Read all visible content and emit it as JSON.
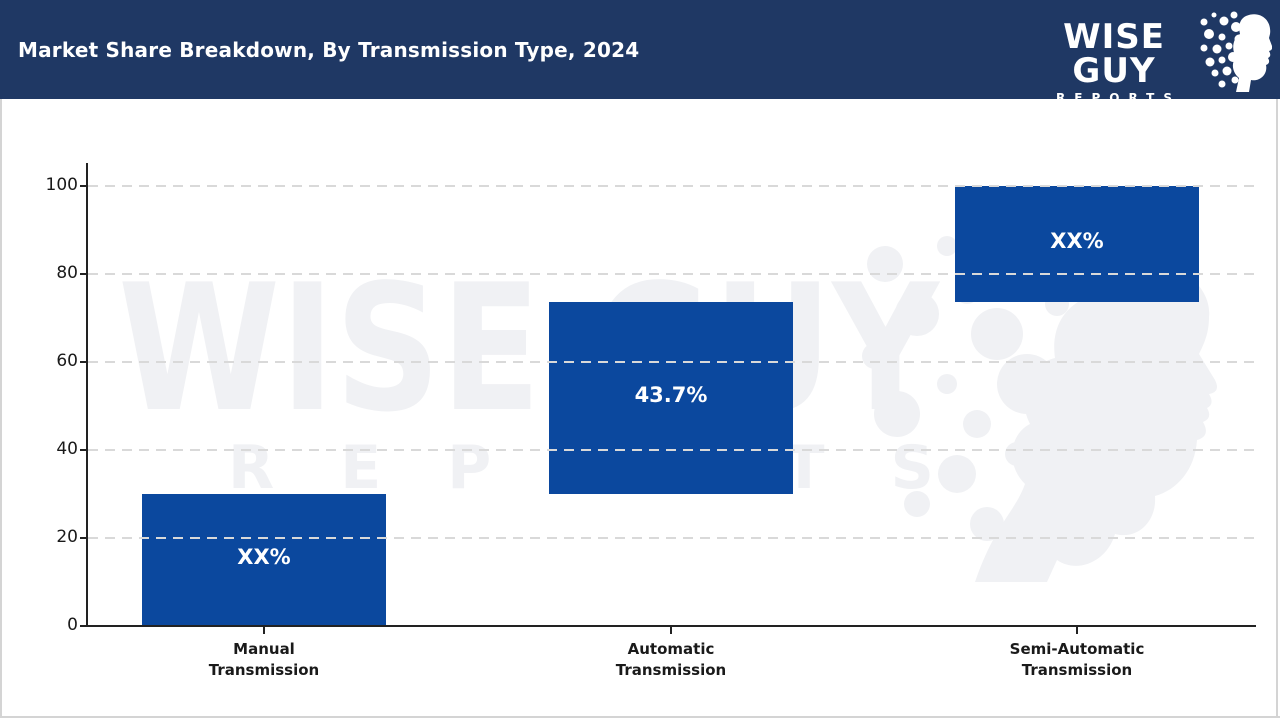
{
  "header": {
    "title": "Market Share Breakdown, By Transmission Type, 2024",
    "logo": {
      "name_top": "WISE GUY",
      "name_bottom": "REPORTS"
    }
  },
  "watermark": {
    "line1": "WISE GUY",
    "line2": "REPORTS"
  },
  "colors": {
    "header_bg": "#1f3864",
    "bar": "#0b489e",
    "grid": "#d9d9d9",
    "axis": "#222222",
    "tick_text": "#1a1a1a",
    "bar_label_text": "#ffffff",
    "watermark": "#f0f1f4",
    "frame": "#d4d4d4"
  },
  "chart_data": {
    "type": "bar",
    "subtype": "floating-waterfall",
    "title": "Market Share Breakdown, By Transmission Type, 2024",
    "ylim": [
      0,
      100
    ],
    "yticks": [
      0,
      20,
      40,
      60,
      80,
      100
    ],
    "grid": "horizontal-dashed",
    "legend": "none",
    "categories": [
      [
        "Manual",
        "Transmission"
      ],
      [
        "Automatic",
        "Transmission"
      ],
      [
        "Semi-Automatic",
        "Transmission"
      ]
    ],
    "segments": [
      {
        "category": "Manual Transmission",
        "start": 0,
        "end": 30,
        "label": "XX%"
      },
      {
        "category": "Automatic Transmission",
        "start": 30,
        "end": 73.7,
        "label": "43.7%"
      },
      {
        "category": "Semi-Automatic Transmission",
        "start": 73.7,
        "end": 100,
        "label": "XX%"
      }
    ]
  }
}
